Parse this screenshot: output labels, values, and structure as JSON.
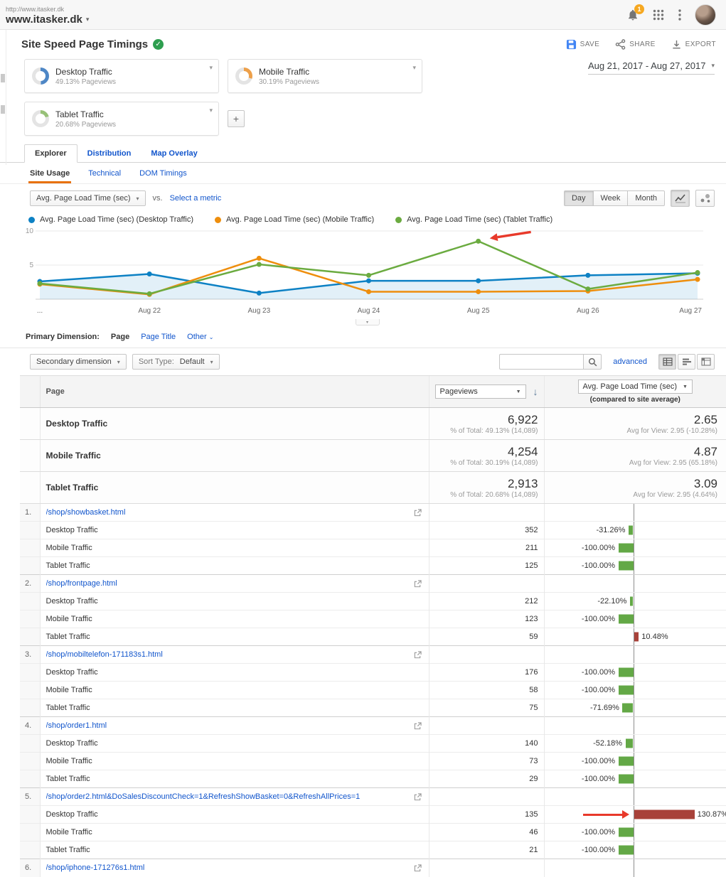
{
  "colors": {
    "bar_negative": "#63a846",
    "bar_positive": "#a8423a",
    "annotation_red": "#e8392a",
    "link_blue": "#1155cc"
  },
  "topbar": {
    "url": "http://www.itasker.dk",
    "account": "www.itasker.dk",
    "notification_count": "1"
  },
  "report": {
    "title": "Site Speed Page Timings",
    "actions": [
      {
        "label": "SAVE"
      },
      {
        "label": "SHARE"
      },
      {
        "label": "EXPORT"
      }
    ],
    "date_range": "Aug 21, 2017 - Aug 27, 2017"
  },
  "segments": [
    {
      "name": "Desktop Traffic",
      "detail": "49.13% Pageviews",
      "pct": 49.13,
      "color": "#4e87c6"
    },
    {
      "name": "Mobile Traffic",
      "detail": "30.19% Pageviews",
      "pct": 30.19,
      "color": "#eda04a"
    },
    {
      "name": "Tablet Traffic",
      "detail": "20.68% Pageviews",
      "pct": 20.68,
      "color": "#97c077"
    }
  ],
  "add_segment_label": "+",
  "tabs": [
    {
      "label": "Explorer",
      "active": true
    },
    {
      "label": "Distribution",
      "active": false
    },
    {
      "label": "Map Overlay",
      "active": false
    }
  ],
  "subtabs": [
    {
      "label": "Site Usage",
      "active": true
    },
    {
      "label": "Technical",
      "active": false
    },
    {
      "label": "DOM Timings",
      "active": false
    }
  ],
  "metric_bar": {
    "metric_select": "Avg. Page Load Time (sec)",
    "vs_label": "vs.",
    "select_metric_link": "Select a metric",
    "granularity": [
      "Day",
      "Week",
      "Month"
    ]
  },
  "chart_data": {
    "type": "line",
    "title": "Avg. Page Load Time (sec) by day per segment",
    "x": [
      "...",
      "Aug 22",
      "Aug 23",
      "Aug 24",
      "Aug 25",
      "Aug 26",
      "Aug 27"
    ],
    "ylim": [
      0,
      10
    ],
    "yticks": [
      5,
      10
    ],
    "grid": true,
    "legend_position": "top",
    "series": [
      {
        "name": "Avg. Page Load Time (sec) (Desktop Traffic)",
        "color": "#0d81c4",
        "area": true,
        "values": [
          2.6,
          3.7,
          0.9,
          2.7,
          2.7,
          3.5,
          3.8
        ]
      },
      {
        "name": "Avg. Page Load Time (sec) (Mobile Traffic)",
        "color": "#ee8e0d",
        "area": false,
        "values": [
          2.2,
          0.7,
          6.0,
          1.1,
          1.1,
          1.2,
          2.9
        ]
      },
      {
        "name": "Avg. Page Load Time (sec) (Tablet Traffic)",
        "color": "#6bab40",
        "area": false,
        "values": [
          2.3,
          0.8,
          5.1,
          3.5,
          8.5,
          1.5,
          3.9
        ]
      }
    ],
    "annotation": {
      "type": "arrow",
      "series": 2,
      "point": 4,
      "color": "#e8392a"
    }
  },
  "primary_dimension": {
    "label": "Primary Dimension:",
    "options": [
      {
        "label": "Page",
        "active": true
      },
      {
        "label": "Page Title",
        "active": false
      },
      {
        "label": "Other",
        "active": false
      }
    ]
  },
  "table_toolbar": {
    "secondary_dimension": "Secondary dimension",
    "sort_type_label": "Sort Type:",
    "sort_type_value": "Default",
    "advanced_link": "advanced"
  },
  "table": {
    "columns": {
      "page": "Page",
      "pageviews": "Pageviews",
      "metric": "Avg. Page Load Time (sec)",
      "metric_note": "(compared to site average)"
    },
    "summary": [
      {
        "name": "Desktop Traffic",
        "pageviews": "6,922",
        "pv_sub": "% of Total: 49.13% (14,089)",
        "metric": "2.65",
        "metric_sub": "Avg for View: 2.95 (-10.28%)"
      },
      {
        "name": "Mobile Traffic",
        "pageviews": "4,254",
        "pv_sub": "% of Total: 30.19% (14,089)",
        "metric": "4.87",
        "metric_sub": "Avg for View: 2.95 (65.18%)"
      },
      {
        "name": "Tablet Traffic",
        "pageviews": "2,913",
        "pv_sub": "% of Total: 20.68% (14,089)",
        "metric": "3.09",
        "metric_sub": "Avg for View: 2.95 (4.64%)"
      }
    ],
    "rows": [
      {
        "index": "1.",
        "page": "/shop/showbasket.html",
        "segments": [
          {
            "name": "Desktop Traffic",
            "pageviews": "352",
            "pct": -31.26,
            "label": "-31.26%"
          },
          {
            "name": "Mobile Traffic",
            "pageviews": "211",
            "pct": -100.0,
            "label": "-100.00%"
          },
          {
            "name": "Tablet Traffic",
            "pageviews": "125",
            "pct": -100.0,
            "label": "-100.00%"
          }
        ]
      },
      {
        "index": "2.",
        "page": "/shop/frontpage.html",
        "segments": [
          {
            "name": "Desktop Traffic",
            "pageviews": "212",
            "pct": -22.1,
            "label": "-22.10%"
          },
          {
            "name": "Mobile Traffic",
            "pageviews": "123",
            "pct": -100.0,
            "label": "-100.00%"
          },
          {
            "name": "Tablet Traffic",
            "pageviews": "59",
            "pct": 10.48,
            "label": "10.48%"
          }
        ]
      },
      {
        "index": "3.",
        "page": "/shop/mobiltelefon-171183s1.html",
        "segments": [
          {
            "name": "Desktop Traffic",
            "pageviews": "176",
            "pct": -100.0,
            "label": "-100.00%"
          },
          {
            "name": "Mobile Traffic",
            "pageviews": "58",
            "pct": -100.0,
            "label": "-100.00%"
          },
          {
            "name": "Tablet Traffic",
            "pageviews": "75",
            "pct": -71.69,
            "label": "-71.69%"
          }
        ]
      },
      {
        "index": "4.",
        "page": "/shop/order1.html",
        "segments": [
          {
            "name": "Desktop Traffic",
            "pageviews": "140",
            "pct": -52.18,
            "label": "-52.18%"
          },
          {
            "name": "Mobile Traffic",
            "pageviews": "73",
            "pct": -100.0,
            "label": "-100.00%"
          },
          {
            "name": "Tablet Traffic",
            "pageviews": "29",
            "pct": -100.0,
            "label": "-100.00%"
          }
        ]
      },
      {
        "index": "5.",
        "page": "/shop/order2.html&DoSalesDiscountCheck=1&RefreshShowBasket=0&RefreshAllPrices=1",
        "segments": [
          {
            "name": "Desktop Traffic",
            "pageviews": "135",
            "pct": 130.87,
            "label": "130.87%",
            "arrow": true
          },
          {
            "name": "Mobile Traffic",
            "pageviews": "46",
            "pct": -100.0,
            "label": "-100.00%"
          },
          {
            "name": "Tablet Traffic",
            "pageviews": "21",
            "pct": -100.0,
            "label": "-100.00%"
          }
        ]
      },
      {
        "index": "6.",
        "page": "/shop/iphone-171276s1.html",
        "segments": []
      }
    ]
  }
}
